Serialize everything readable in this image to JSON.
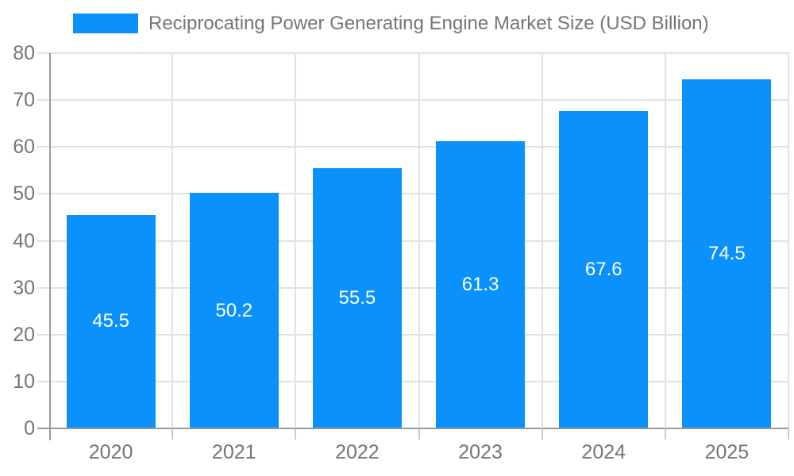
{
  "legend": {
    "label": "Reciprocating Power Generating Engine Market Size (USD Billion)"
  },
  "colors": {
    "bar": "#0A91FB",
    "grid": "#e2e2e2",
    "axis": "#9a9a9a",
    "minor_tick": "#c9c9c9",
    "tick_label": "#757575",
    "value_label": "#ffffff",
    "background": "#ffffff"
  },
  "chart_data": {
    "type": "bar",
    "title": "Reciprocating Power Generating Engine Market Size (USD Billion)",
    "categories": [
      "2020",
      "2021",
      "2022",
      "2023",
      "2024",
      "2025"
    ],
    "values": [
      45.5,
      50.2,
      55.5,
      61.3,
      67.6,
      74.5
    ],
    "xlabel": "",
    "ylabel": "",
    "ylim": [
      0,
      80
    ],
    "yticks": [
      0,
      10,
      20,
      30,
      40,
      50,
      60,
      70,
      80
    ],
    "grid": true,
    "legend_position": "top",
    "value_label_position": "inside-center",
    "bar_width_ratio": 0.72
  }
}
